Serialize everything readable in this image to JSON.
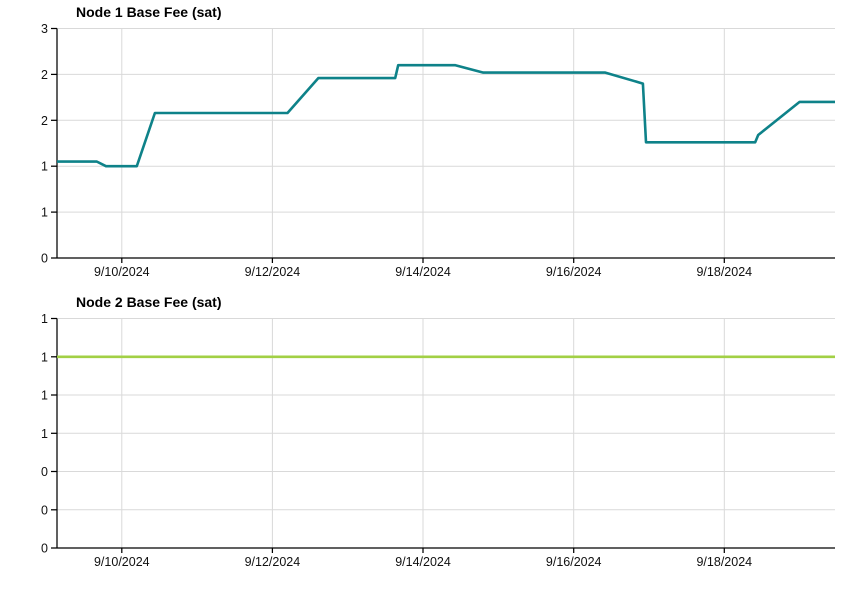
{
  "page": {
    "background": "#ffffff"
  },
  "colors": {
    "gridline": "#d9d9d9",
    "axis": "#000000",
    "tick_label": "#111111",
    "title": "#000000",
    "node1_line": "#0e8289",
    "node2_line": "#a2d045"
  },
  "chart_data": [
    {
      "type": "line",
      "title": "Node 1 Base Fee (sat)",
      "xlabel": "",
      "ylabel": "",
      "x_unit": "days relative to 9/10/2024 00:00",
      "xlim": [
        -0.86,
        9.47
      ],
      "ylim": [
        0,
        2.5
      ],
      "grid": true,
      "legend_position": "none",
      "yticks": [
        {
          "v": 0.0,
          "label": "0"
        },
        {
          "v": 0.5,
          "label": "1"
        },
        {
          "v": 1.0,
          "label": "1"
        },
        {
          "v": 1.5,
          "label": "2"
        },
        {
          "v": 2.0,
          "label": "2"
        },
        {
          "v": 2.5,
          "label": "3"
        }
      ],
      "xticks": [
        {
          "v": 0,
          "label": "9/10/2024"
        },
        {
          "v": 2,
          "label": "9/12/2024"
        },
        {
          "v": 4,
          "label": "9/14/2024"
        },
        {
          "v": 6,
          "label": "9/16/2024"
        },
        {
          "v": 8,
          "label": "9/18/2024"
        }
      ],
      "series": [
        {
          "name": "node1-base-fee",
          "color": "#0e8289",
          "points": [
            [
              -0.86,
              1.05
            ],
            [
              -0.33,
              1.05
            ],
            [
              -0.21,
              1.0
            ],
            [
              0.2,
              1.0
            ],
            [
              0.44,
              1.58
            ],
            [
              2.2,
              1.58
            ],
            [
              2.61,
              1.96
            ],
            [
              3.63,
              1.96
            ],
            [
              3.67,
              2.1
            ],
            [
              4.43,
              2.1
            ],
            [
              4.8,
              2.02
            ],
            [
              6.42,
              2.02
            ],
            [
              6.92,
              1.9
            ],
            [
              6.96,
              1.26
            ],
            [
              8.41,
              1.26
            ],
            [
              8.45,
              1.34
            ],
            [
              9.0,
              1.7
            ],
            [
              9.47,
              1.7
            ]
          ]
        }
      ]
    },
    {
      "type": "line",
      "title": "Node 2 Base Fee (sat)",
      "xlabel": "",
      "ylabel": "",
      "x_unit": "days relative to 9/10/2024 00:00",
      "xlim": [
        -0.86,
        9.47
      ],
      "ylim": [
        0,
        1.2
      ],
      "grid": true,
      "legend_position": "none",
      "yticks": [
        {
          "v": 0.0,
          "label": "0"
        },
        {
          "v": 0.2,
          "label": "0"
        },
        {
          "v": 0.4,
          "label": "0"
        },
        {
          "v": 0.6,
          "label": "1"
        },
        {
          "v": 0.8,
          "label": "1"
        },
        {
          "v": 1.0,
          "label": "1"
        },
        {
          "v": 1.2,
          "label": "1"
        }
      ],
      "xticks": [
        {
          "v": 0,
          "label": "9/10/2024"
        },
        {
          "v": 2,
          "label": "9/12/2024"
        },
        {
          "v": 4,
          "label": "9/14/2024"
        },
        {
          "v": 6,
          "label": "9/16/2024"
        },
        {
          "v": 8,
          "label": "9/18/2024"
        }
      ],
      "series": [
        {
          "name": "node2-base-fee",
          "color": "#a2d045",
          "points": [
            [
              -0.86,
              1.0
            ],
            [
              9.47,
              1.0
            ]
          ]
        }
      ]
    }
  ]
}
